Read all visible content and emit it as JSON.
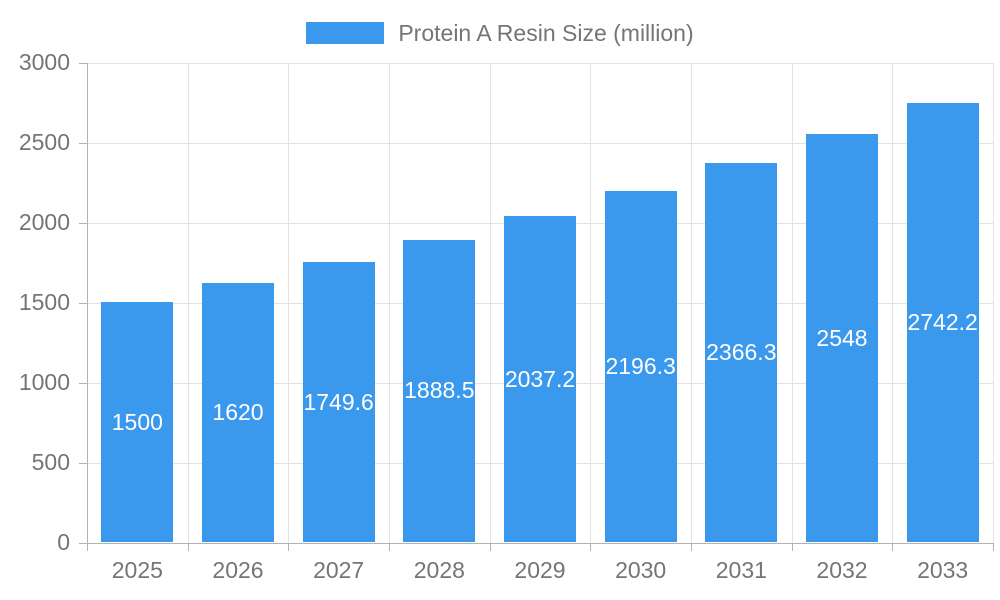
{
  "legend": {
    "label": "Protein A Resin Size (million)"
  },
  "colors": {
    "bar": "#3b99ed",
    "grid": "#e2e2e2",
    "axis": "#b3b3b3",
    "tick_text": "#757575",
    "value_label_text": "#ffffff"
  },
  "chart_data": {
    "type": "bar",
    "title": "Protein A Resin Size (million)",
    "categories": [
      "2025",
      "2026",
      "2027",
      "2028",
      "2029",
      "2030",
      "2031",
      "2032",
      "2033"
    ],
    "values": [
      1500,
      1620,
      1749.6,
      1888.5,
      2037.2,
      2196.3,
      2366.3,
      2548,
      2742.2
    ],
    "value_labels": [
      "1500",
      "1620",
      "1749.6",
      "1888.5",
      "2037.2",
      "2196.3",
      "2366.3",
      "2548",
      "2742.2"
    ],
    "xlabel": "",
    "ylabel": "",
    "ylim": [
      0,
      3000
    ],
    "yticks": [
      0,
      500,
      1000,
      1500,
      2000,
      2500,
      3000
    ],
    "grid": true,
    "legend_position": "top"
  }
}
